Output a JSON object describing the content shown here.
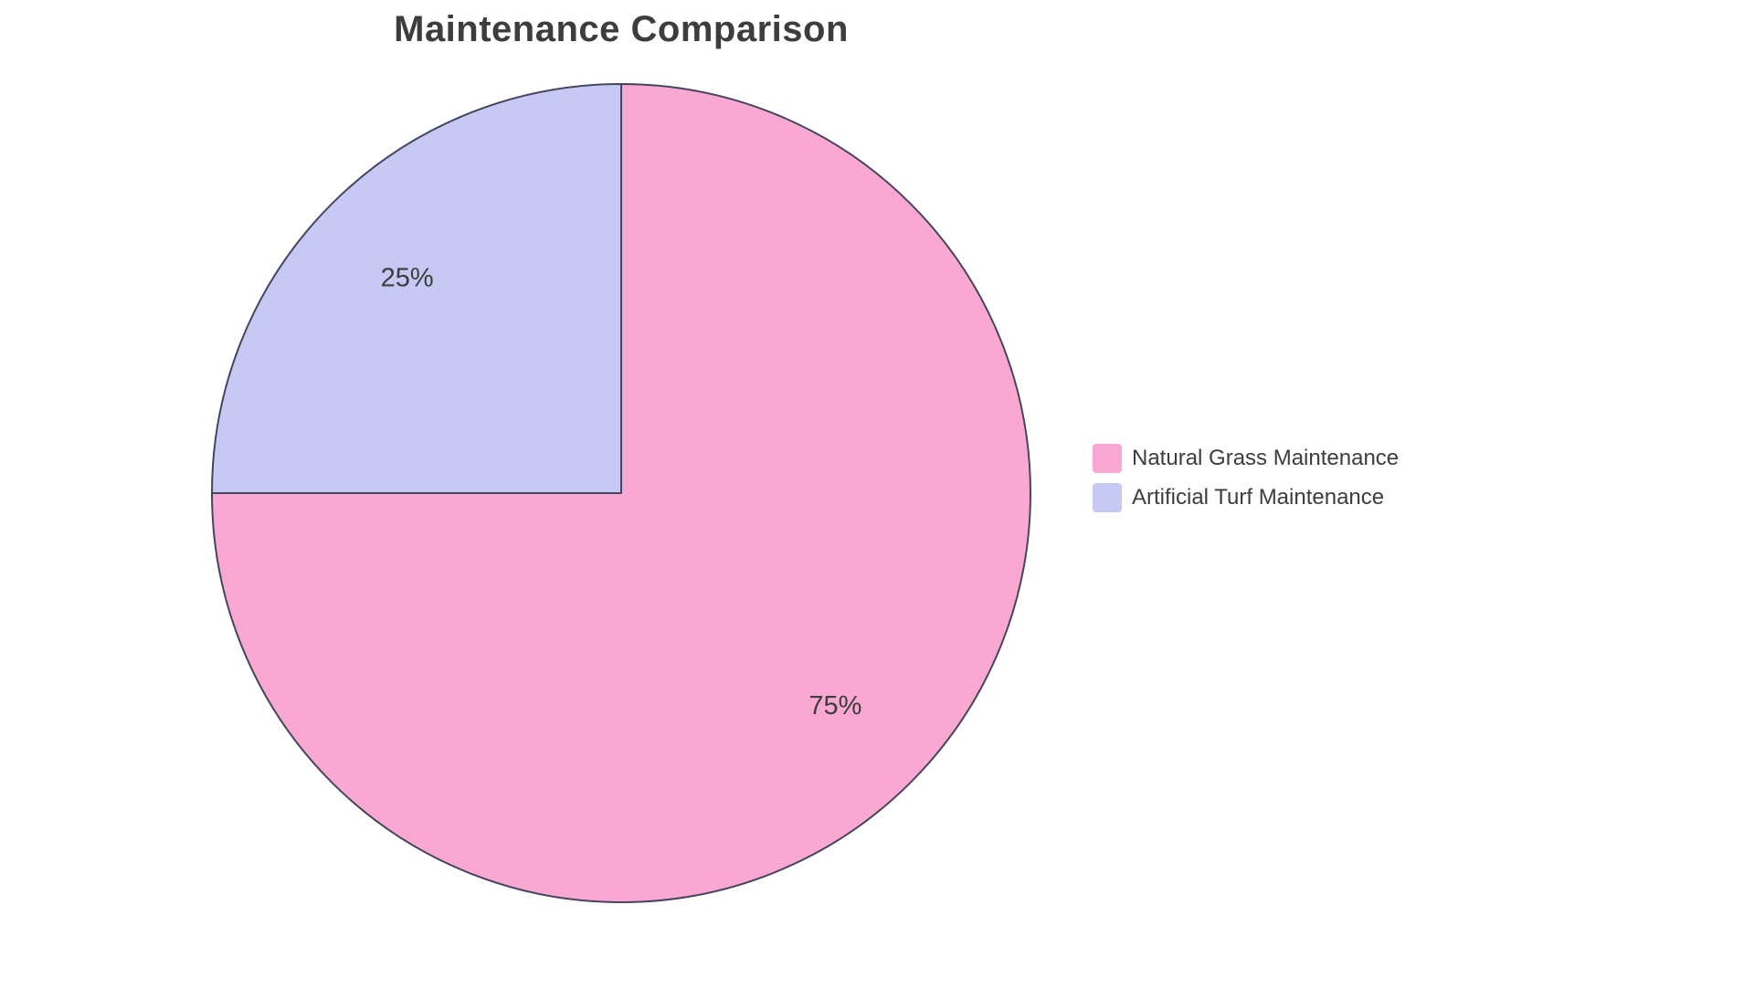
{
  "chart_data": {
    "type": "pie",
    "title": "Maintenance Comparison",
    "series": [
      {
        "label": "Natural Grass Maintenance",
        "value": 75,
        "pct_label": "75%",
        "color": "#F9A8D2"
      },
      {
        "label": "Artificial Turf Maintenance",
        "value": 25,
        "pct_label": "25%",
        "color": "#C7C9F4"
      }
    ],
    "start_angle": "top",
    "direction": "clockwise",
    "stroke_color": "#45455F",
    "label_color": "#3d3d3d",
    "legend_position": "right",
    "background": "#ffffff"
  }
}
